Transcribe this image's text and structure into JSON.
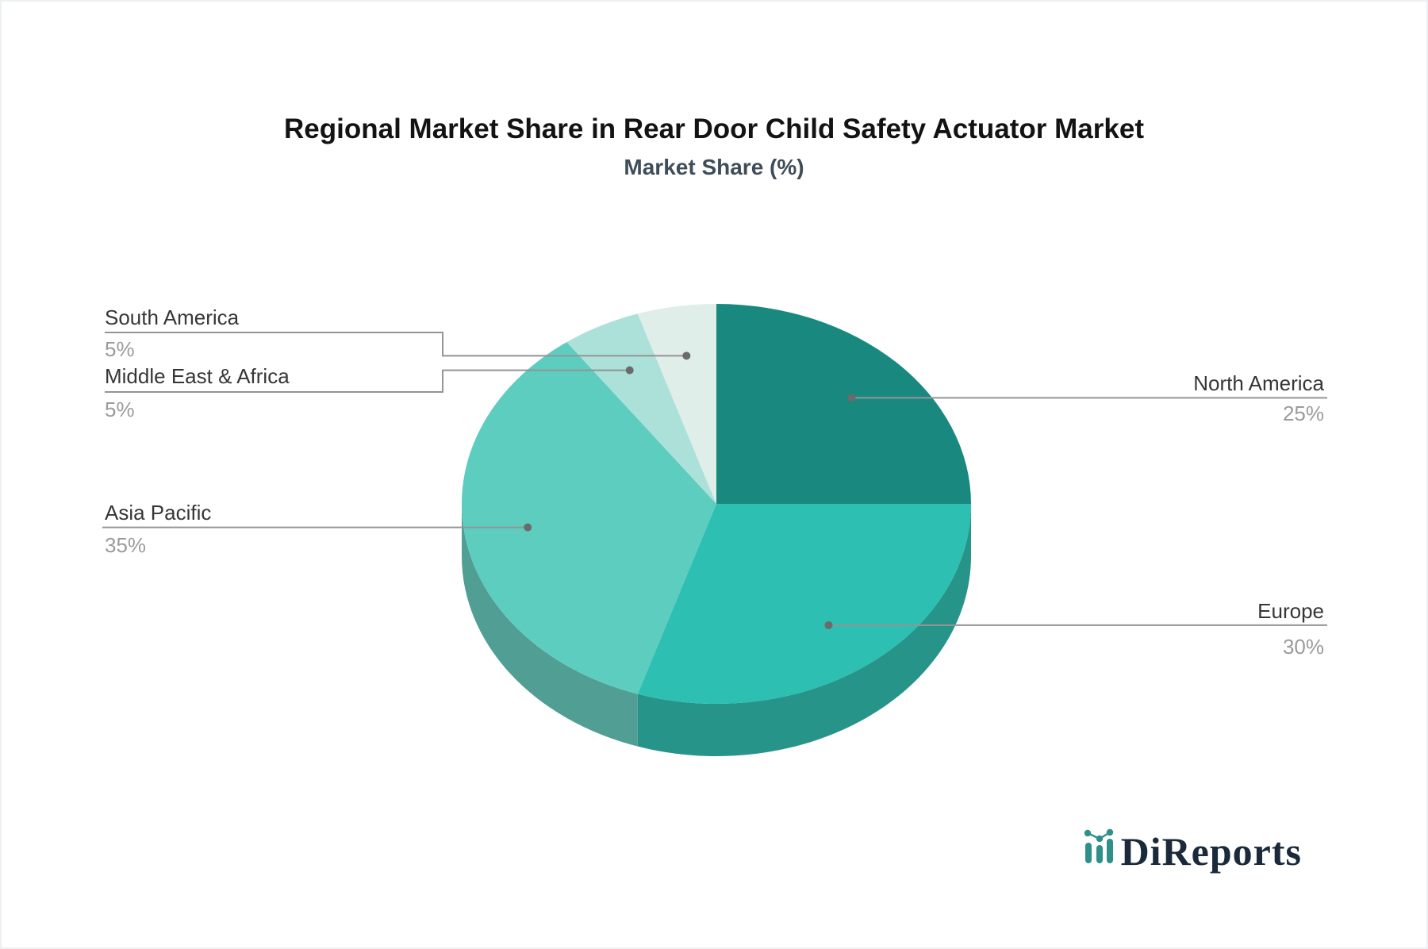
{
  "page": {
    "title": "Regional Market Share in Rear Door Child Safety Actuator Market",
    "subtitle": "Market Share (%)"
  },
  "chart_data": {
    "type": "pie",
    "title": "Regional Market Share in Rear Door Child Safety Actuator Market",
    "subtitle": "Market Share (%)",
    "unit": "%",
    "effect": "3d",
    "start_angle_deg": 0,
    "direction": "clockwise",
    "legend": "none",
    "labels_layout": "callouts",
    "segments": [
      {
        "label": "North America",
        "value": 25,
        "display": "25%",
        "color": "#19897f",
        "side_color": "#19897f"
      },
      {
        "label": "Europe",
        "value": 30,
        "display": "30%",
        "color": "#2dbfb1",
        "side_color": "#27948a"
      },
      {
        "label": "Asia Pacific",
        "value": 35,
        "display": "35%",
        "color": "#5dcdc0",
        "side_color": "#519e94"
      },
      {
        "label": "Middle East & Africa",
        "value": 5,
        "display": "5%",
        "color": "#ace1d9",
        "side_color": "#8cbdb5"
      },
      {
        "label": "South America",
        "value": 5,
        "display": "5%",
        "color": "#e0eeea",
        "side_color": "#bcc9c6"
      }
    ]
  },
  "colors": {
    "title": "#131313",
    "subtitle": "#3f4d5a",
    "label_text": "#363636",
    "value_text": "#9b9b9b",
    "connector": "#949494",
    "dot": "#6b6b6b",
    "logo_teal": "#2f908a",
    "logo_navy": "#1b2a3b"
  },
  "logo": {
    "text": "DiReports",
    "icon": "bar-line-chart-icon"
  }
}
